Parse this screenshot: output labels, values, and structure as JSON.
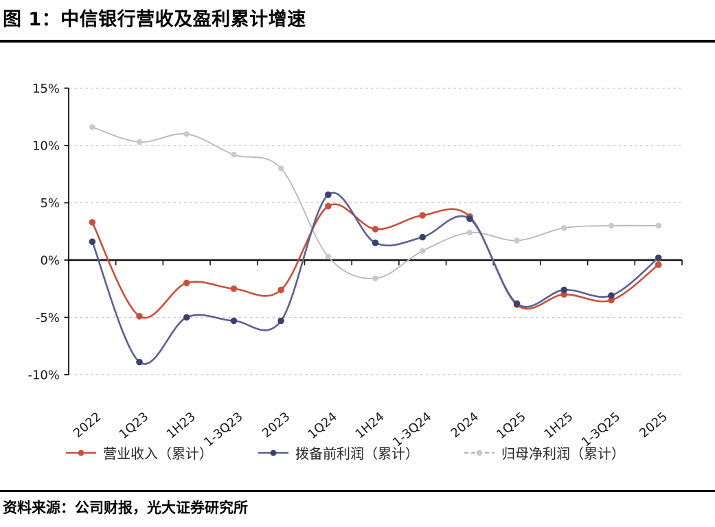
{
  "figure": {
    "title": "图 1：中信银行营收及盈利累计增速",
    "source": "资料来源：公司财报，光大证券研究所"
  },
  "chart_data": {
    "type": "line",
    "title": "中信银行营收及盈利累计增速",
    "categories": [
      "2022",
      "1Q23",
      "1H23",
      "1-3Q23",
      "2023",
      "1Q24",
      "1H24",
      "1-3Q24",
      "2024",
      "1Q25",
      "1H25",
      "1-3Q25",
      "2025"
    ],
    "series": [
      {
        "name": "营业收入（累计）",
        "color": "#c8503c",
        "marker_color": "#c8503c",
        "line_style": "solid",
        "values": [
          3.3,
          -4.9,
          -2.0,
          -2.5,
          -2.6,
          4.7,
          2.7,
          3.9,
          3.8,
          -3.9,
          -3.0,
          -3.5,
          -0.4
        ]
      },
      {
        "name": "拨备前利润（累计）",
        "color": "#5b5f92",
        "marker_color": "#3b406f",
        "line_style": "solid",
        "values": [
          1.6,
          -8.9,
          -5.0,
          -5.3,
          -5.3,
          5.7,
          1.5,
          2.0,
          3.6,
          -3.8,
          -2.6,
          -3.1,
          0.2
        ]
      },
      {
        "name": "归母净利润（累计）",
        "color": "#b7b7b7",
        "marker_color": "#c9c9c9",
        "line_style": "dashed-legend",
        "values": [
          11.6,
          10.3,
          11.0,
          9.2,
          8.0,
          0.3,
          -1.6,
          0.8,
          2.4,
          1.7,
          2.8,
          3.0,
          3.0
        ]
      }
    ],
    "yticks": [
      {
        "label": "15%",
        "value": 15
      },
      {
        "label": "10%",
        "value": 10
      },
      {
        "label": "5%",
        "value": 5
      },
      {
        "label": "0%",
        "value": 0
      },
      {
        "label": "-5%",
        "value": -5
      },
      {
        "label": "-10%",
        "value": -10
      }
    ],
    "ylim": [
      -10,
      15
    ],
    "grid": "horizontal dashed, solid black zero line",
    "legend_position": "bottom",
    "curve": "smoothed"
  }
}
